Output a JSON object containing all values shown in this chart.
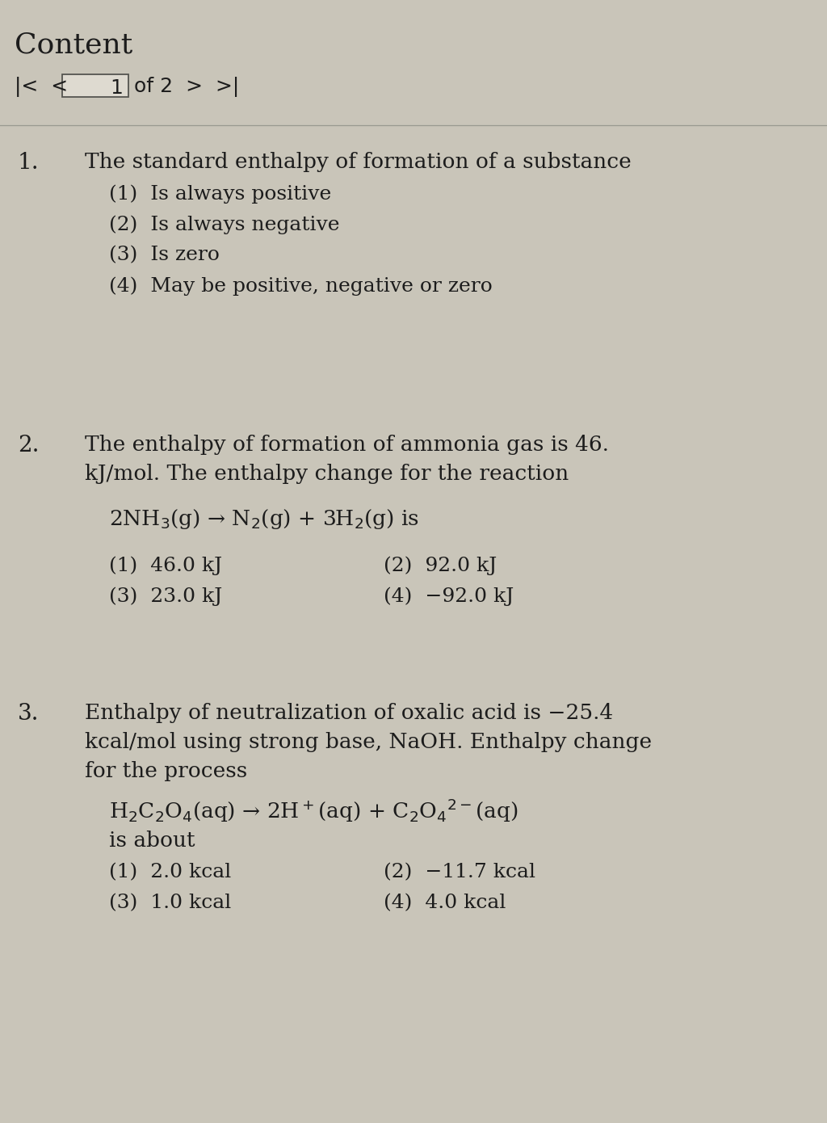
{
  "background_color": "#c9c5b9",
  "title": "Content",
  "q1_num": "1.",
  "q1_text": "The standard enthalpy of formation of a substance",
  "q1_opts": [
    "(1)  Is always positive",
    "(2)  Is always negative",
    "(3)  Is zero",
    "(4)  May be positive, negative or zero"
  ],
  "q2_num": "2.",
  "q2_line1": "The enthalpy of formation of ammonia gas is 46.",
  "q2_line2": "kJ/mol. The enthalpy change for the reaction",
  "q2_equation": "2NH$_3$(g) → N$_2$(g) + 3H$_2$(g) is",
  "q2_opts_col1": [
    "(1)  46.0 kJ",
    "(3)  23.0 kJ"
  ],
  "q2_opts_col2": [
    "(2)  92.0 kJ",
    "(4)  −92.0 kJ"
  ],
  "q3_num": "3.",
  "q3_line1": "Enthalpy of neutralization of oxalic acid is −25.4",
  "q3_line2": "kcal/mol using strong base, NaOH. Enthalpy change",
  "q3_line3": "for the process",
  "q3_equation": "H$_2$C$_2$O$_4$(aq) → 2H$^+$(aq) + C$_2$O$_4$$^{2-}$(aq)",
  "q3_is_about": "is about",
  "q3_opts_col1": [
    "(1)  2.0 kcal",
    "(3)  1.0 kcal"
  ],
  "q3_opts_col2": [
    "(2)  −11.7 kcal",
    "(4)  4.0 kcal"
  ],
  "font_size_title": 26,
  "font_size_nav": 18,
  "font_size_qnum": 20,
  "font_size_qtext": 19,
  "font_size_opts": 18,
  "font_size_eq": 19,
  "text_color": "#1c1c1c",
  "box_facecolor": "#dedad0",
  "box_edgecolor": "#555550",
  "sep_color": "#999990"
}
